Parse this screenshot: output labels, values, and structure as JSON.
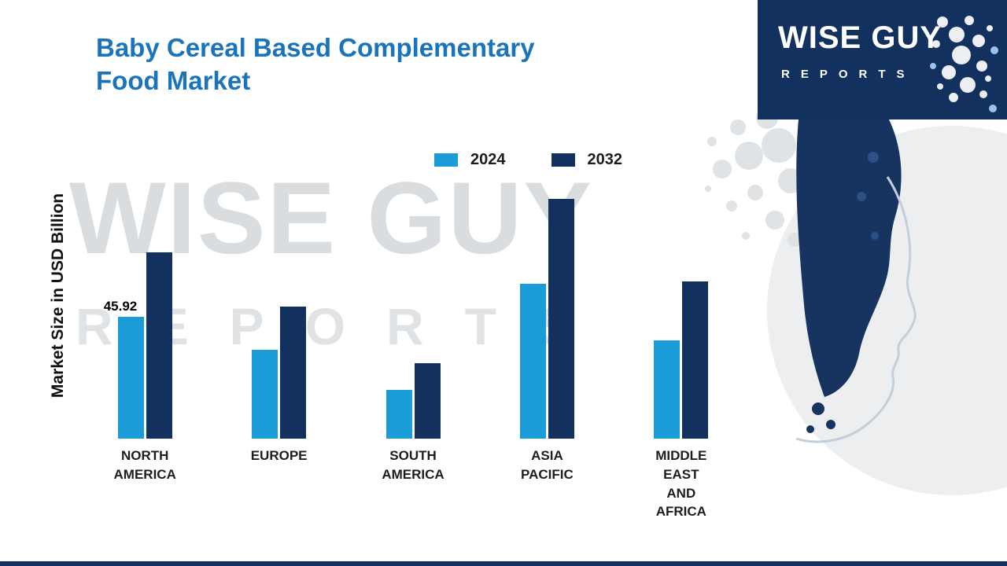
{
  "page": {
    "title": "Baby Cereal Based Complementary\nFood Market",
    "y_axis_label": "Market Size in USD Billion"
  },
  "watermark": {
    "line1": "WISE GUY",
    "line2": "REPORTS"
  },
  "logo": {
    "line1": "WISE GUY",
    "line2": "REPORTS"
  },
  "colors": {
    "title_blue": "#1b74ba",
    "navy": "#12315e",
    "light_blue": "#1b9cd8",
    "watermark_gray": "#dadde0",
    "circle_gray": "#eceef0"
  },
  "chart_data": {
    "type": "bar",
    "title": "Baby Cereal Based Complementary Food Market",
    "ylabel": "Market Size in USD Billion",
    "unit": "USD Billion",
    "categories": [
      "NORTH\nAMERICA",
      "EUROPE",
      "SOUTH\nAMERICA",
      "ASIA\nPACIFIC",
      "MIDDLE\nEAST\nAND\nAFRICA"
    ],
    "series": [
      {
        "name": "2024",
        "color": "#1b9cd8",
        "values": [
          45.92,
          33.5,
          18.5,
          58.5,
          37.0
        ]
      },
      {
        "name": "2032",
        "color": "#12315e",
        "values": [
          70.5,
          50.0,
          28.5,
          90.5,
          59.5
        ]
      }
    ],
    "ylim": [
      0,
      95
    ],
    "grid": false,
    "legend_position": "top",
    "annotation": {
      "text": "45.92",
      "category_index": 0,
      "series_index": 0
    }
  }
}
